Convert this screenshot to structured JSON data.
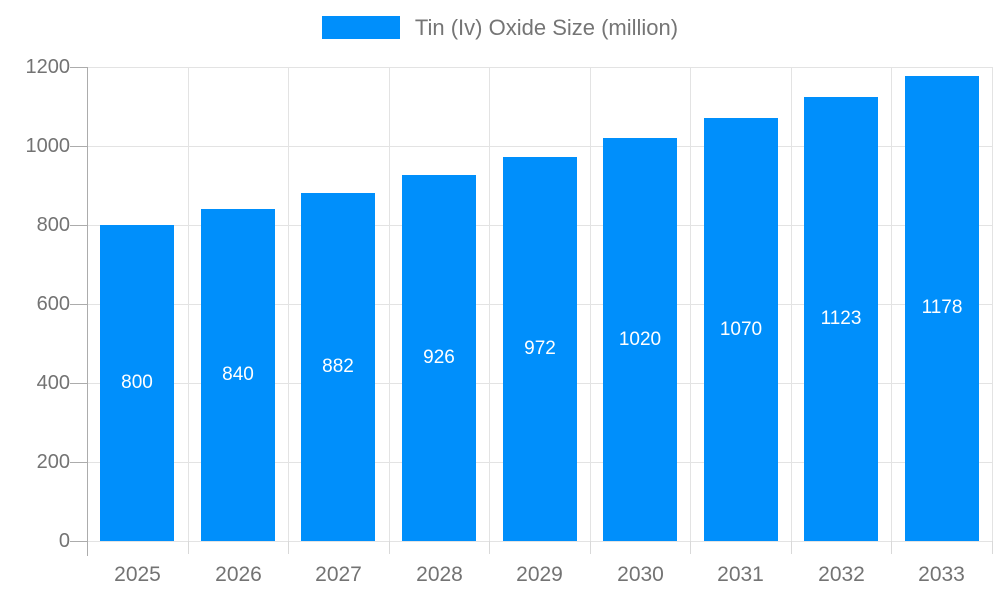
{
  "legend": {
    "label": "Tin (Iv) Oxide Size (million)"
  },
  "colors": {
    "bar": "#008FFB",
    "grid": "#e3e3e3",
    "axis_line": "#acacac",
    "x_tick": "#d9d9d9",
    "tick_label": "#737373",
    "legend_text": "#757575",
    "data_label": "#ffffff",
    "background": "#ffffff"
  },
  "chart_data": {
    "type": "bar",
    "title": "",
    "xlabel": "",
    "ylabel": "",
    "categories": [
      "2025",
      "2026",
      "2027",
      "2028",
      "2029",
      "2030",
      "2031",
      "2032",
      "2033"
    ],
    "series": [
      {
        "name": "Tin (Iv) Oxide Size (million)",
        "values": [
          800,
          840,
          882,
          926,
          972,
          1020,
          1070,
          1123,
          1178
        ]
      }
    ],
    "ylim": [
      0,
      1200
    ],
    "yticks": [
      0,
      200,
      400,
      600,
      800,
      1000,
      1200
    ],
    "grid": true,
    "legend_position": "top",
    "data_labels": "inside-center"
  }
}
